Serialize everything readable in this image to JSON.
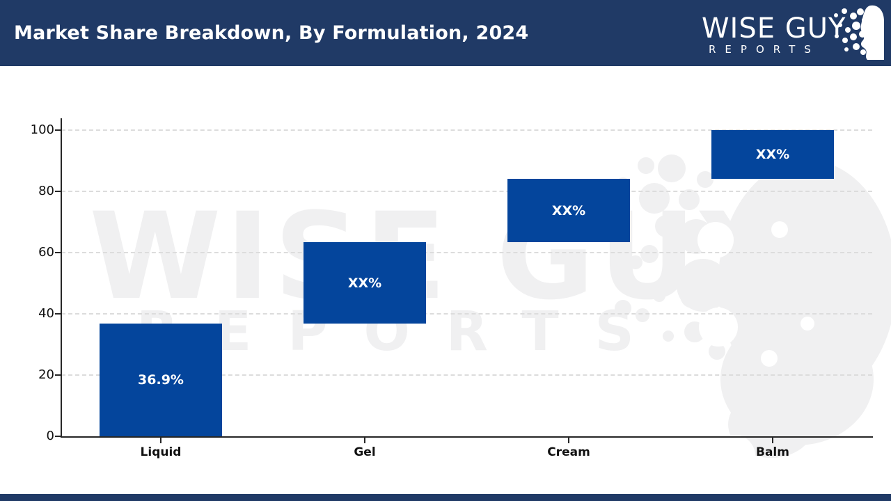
{
  "header": {
    "title": "Market Share Breakdown, By Formulation, 2024",
    "logo": {
      "line1": "WISE GUY",
      "line2": "REPORTS"
    }
  },
  "watermark": {
    "line1": "WISE GUY",
    "line2": "REPORTS"
  },
  "chart_data": {
    "type": "bar",
    "subtype": "stacked-waterfall",
    "title": "Market Share Breakdown, By Formulation, 2024",
    "categories": [
      "Liquid",
      "Gel",
      "Cream",
      "Balm"
    ],
    "segments": [
      {
        "category": "Liquid",
        "start": 0,
        "end": 36.9,
        "label": "36.9%"
      },
      {
        "category": "Gel",
        "start": 36.9,
        "end": 63.3,
        "label": "XX%"
      },
      {
        "category": "Cream",
        "start": 63.3,
        "end": 84.0,
        "label": "XX%"
      },
      {
        "category": "Balm",
        "start": 84.0,
        "end": 100,
        "label": "XX%"
      }
    ],
    "xlabel": "",
    "ylabel": "",
    "ylim": [
      0,
      100
    ],
    "yticks": [
      0,
      20,
      40,
      60,
      80,
      100
    ],
    "grid": "horizontal-dashed",
    "legend": "none"
  },
  "colors": {
    "band_bg": "#203a66",
    "bar": "#04459c",
    "bar_label": "#ffffff",
    "watermark": "#f0f0f1",
    "gridline": "#dcdcdc",
    "axis": "#262626",
    "title_text": "#ffffff"
  }
}
